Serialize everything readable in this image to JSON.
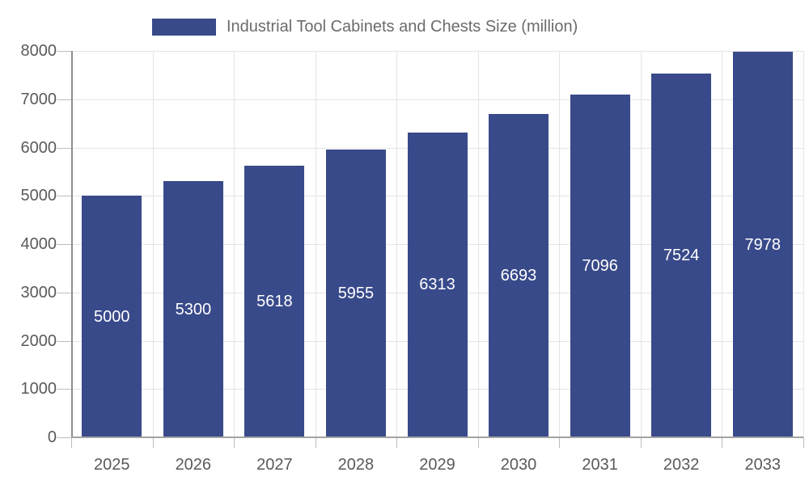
{
  "legend": {
    "label": "Industrial Tool Cabinets and Chests Size (million)"
  },
  "chart_data": {
    "type": "bar",
    "title": "Industrial Tool Cabinets and Chests Size (million)",
    "categories": [
      "2025",
      "2026",
      "2027",
      "2028",
      "2029",
      "2030",
      "2031",
      "2032",
      "2033"
    ],
    "values": [
      5000,
      5300,
      5618,
      5955,
      6313,
      6693,
      7096,
      7524,
      7978
    ],
    "xlabel": "",
    "ylabel": "",
    "ylim": [
      0,
      8000
    ],
    "yticks": [
      0,
      1000,
      2000,
      3000,
      4000,
      5000,
      6000,
      7000,
      8000
    ],
    "grid": true,
    "legend_position": "top-center",
    "value_labels": "inside-middle"
  },
  "colors": {
    "bar": "#394A8A",
    "grid": "#e4e4e6",
    "axis_y": "#8f8f8f",
    "axis_x": "#a3a3a3",
    "tick": "#bdbdbd",
    "tick_label": "#5a5a5a",
    "legend_text": "#6b6b6b",
    "value_label": "#ffffff",
    "background": "#ffffff"
  }
}
